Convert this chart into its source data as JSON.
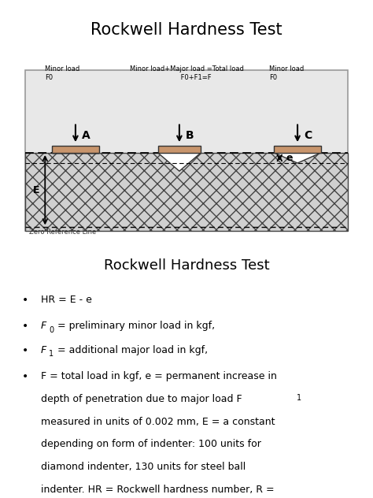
{
  "title_top": "Rockwell Hardness Test",
  "title_bottom": "Rockwell Hardness Test",
  "bg_color": "#ffffff",
  "diagram_bg": "#e8e8e8",
  "material_hatch_color": "#cccccc",
  "indenter_fill_color": "#c8956c",
  "indenter_cone_color": "#f5f5f5",
  "text_minor_load_A": "Minor load\nF0",
  "text_total_load": "Minor load+Major load =Total load\n         F0+F1=F",
  "text_minor_load_C": "Minor load\nF0",
  "label_A": "A",
  "label_B": "B",
  "label_C": "C",
  "label_E": "E",
  "label_e": "e",
  "zero_ref_label": "Zero Reference Line",
  "line1": "HR = E - e",
  "line2_pre": "F",
  "line2_sub": "0",
  "line2_post": " = preliminary minor load in kgf,",
  "line3_pre": "F",
  "line3_sub": "1",
  "line3_post": " = additional major load in kgf,",
  "line4": "F = total load in kgf, e = permanent increase in",
  "line5": "depth of penetration due to major load F",
  "line5_sub": "1",
  "line6": "measured in units of 0.002 mm, E = a constant",
  "line7": "depending on form of indenter: 100 units for",
  "line8": "diamond indenter, 130 units for steel ball",
  "line9": "indenter. HR = Rockwell hardness number, R ="
}
